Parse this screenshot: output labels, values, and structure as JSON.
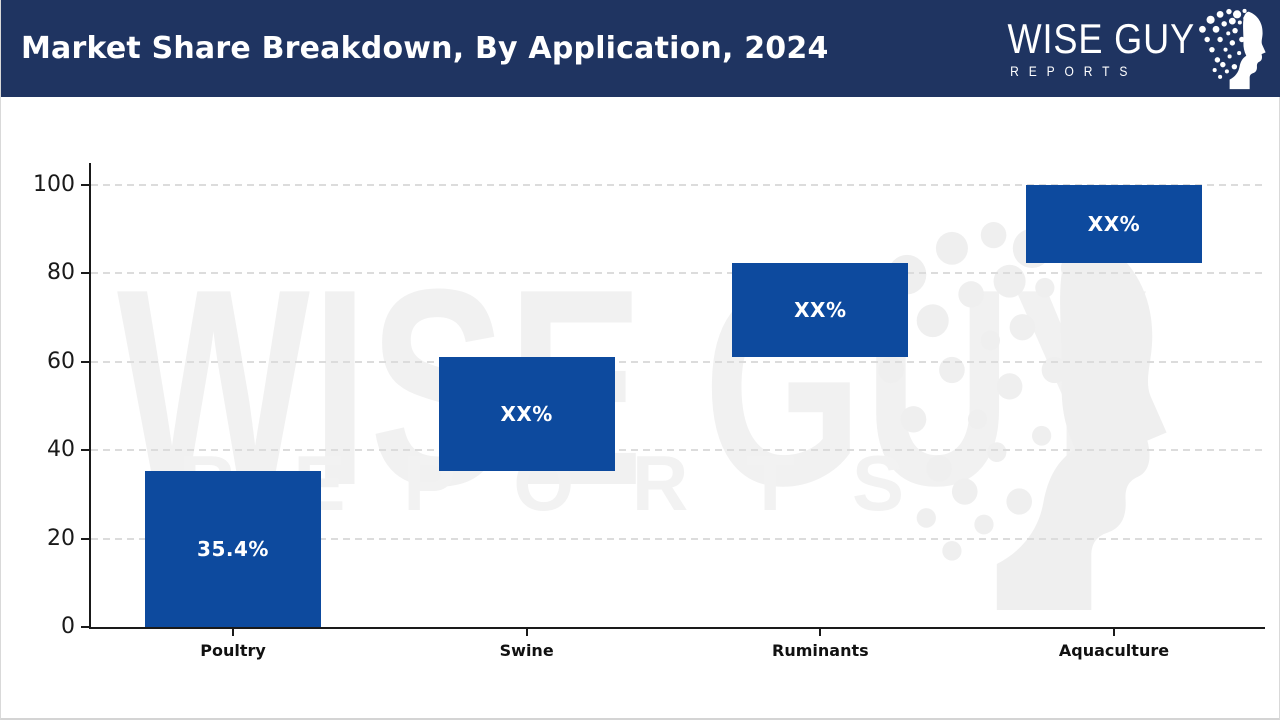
{
  "header": {
    "title": "Market Share Breakdown, By Application, 2024",
    "logo_line1": "WISE GUY",
    "logo_line2": "REPORTS"
  },
  "watermark": {
    "line1": "WISE GUY",
    "line2": "REPORTS"
  },
  "chart_data": {
    "type": "bar",
    "subtype": "waterfall-breakdown",
    "title": "Market Share Breakdown, By Application, 2024",
    "categories": [
      "Poultry",
      "Swine",
      "Ruminants",
      "Aquaculture"
    ],
    "bars": [
      {
        "category": "Poultry",
        "start": 0,
        "end": 35.4,
        "label": "35.4%"
      },
      {
        "category": "Swine",
        "start": 35.4,
        "end": 61.2,
        "label": "XX%"
      },
      {
        "category": "Ruminants",
        "start": 61.2,
        "end": 82.4,
        "label": "XX%"
      },
      {
        "category": "Aquaculture",
        "start": 82.4,
        "end": 100,
        "label": "XX%"
      }
    ],
    "xlabel": "",
    "ylabel": "",
    "ylim": [
      0,
      105
    ],
    "yticks": [
      0,
      20,
      40,
      60,
      80,
      100
    ],
    "grid": "horizontal-dashed",
    "legend": null,
    "colors": {
      "bar": "#0d4a9e",
      "bar_label": "#ffffff",
      "axis": "#1a1a1a",
      "grid": "#dcdcdc",
      "header_bg": "#1f3461",
      "header_text": "#ffffff",
      "watermark": "#f1f1f1"
    }
  }
}
